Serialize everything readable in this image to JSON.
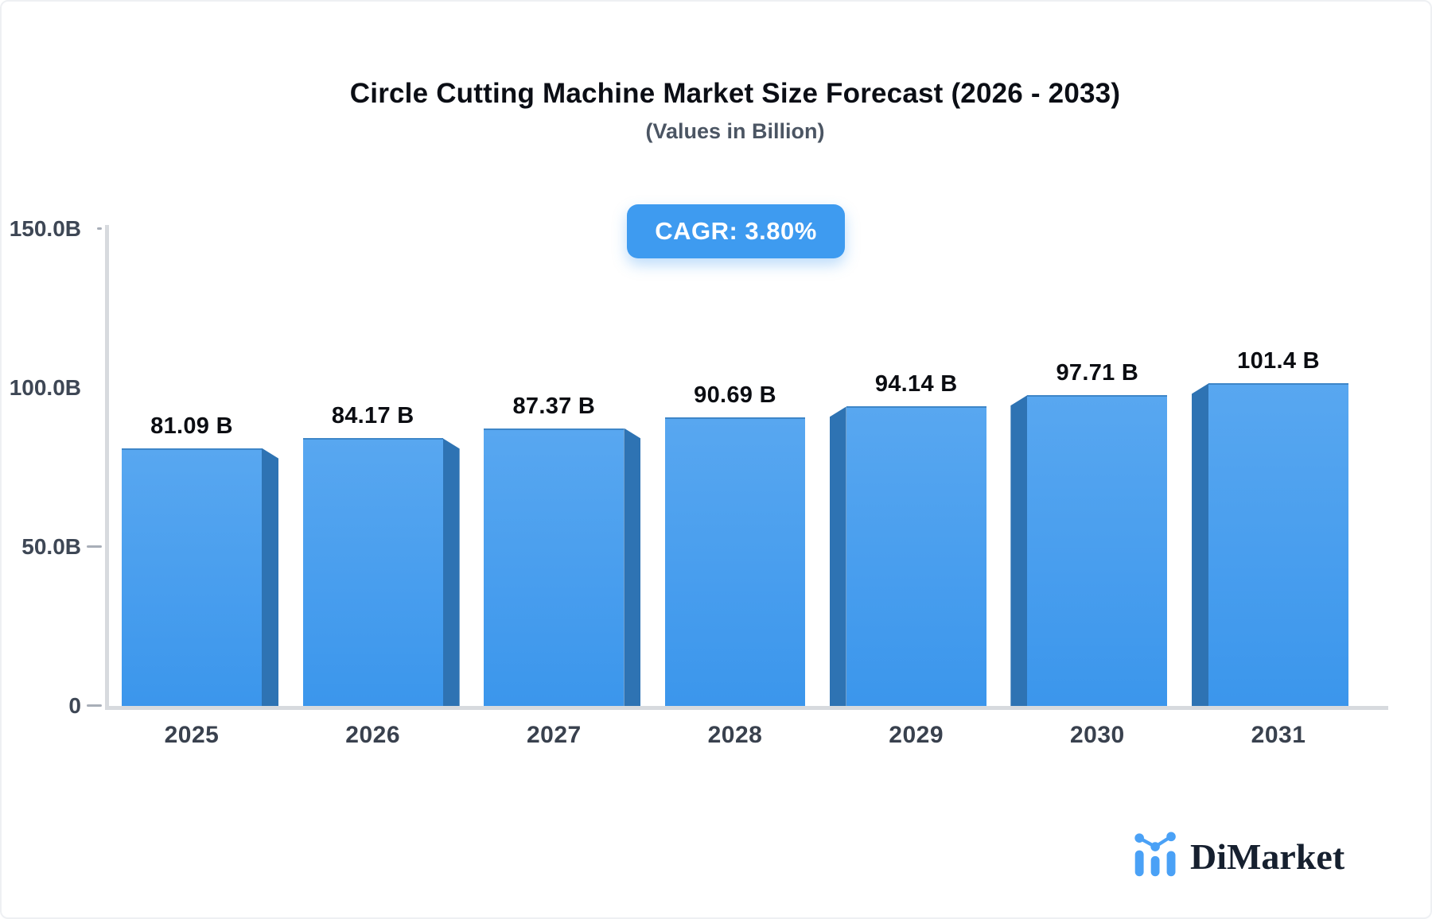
{
  "header": {
    "title": "Circle Cutting Machine Market Size Forecast (2026 - 2033)",
    "subtitle": "(Values in Billion)"
  },
  "badge": {
    "label": "CAGR: 3.80%",
    "bg_color": "#3e9bf0"
  },
  "chart_data": {
    "type": "bar",
    "title": "Circle Cutting Machine Market Size Forecast (2026 - 2033)",
    "subtitle": "(Values in Billion)",
    "xlabel": "",
    "ylabel": "",
    "categories": [
      "2025",
      "2026",
      "2027",
      "2028",
      "2029",
      "2030",
      "2031"
    ],
    "values": [
      81.09,
      84.17,
      87.37,
      90.69,
      94.14,
      97.71,
      101.4
    ],
    "value_labels": [
      "81.09 B",
      "84.17 B",
      "87.37 B",
      "90.69 B",
      "94.14 B",
      "97.71 B",
      "101.4 B"
    ],
    "unit": "Billion",
    "y_ticks": [
      "150.0B",
      "100.0B",
      "50.0B",
      "0"
    ],
    "y_tick_values": [
      150,
      100,
      50,
      0
    ],
    "ylim": [
      0,
      150
    ],
    "grid": false,
    "legend": "none",
    "bar_color_top": "#58a7f0",
    "bar_color_bottom": "#3b96ec",
    "bar_side_color": "#2e73b3",
    "axis_color": "#d7dade",
    "tick_color": "#a8aeb8"
  },
  "logo": {
    "text": "DiMarket",
    "icon": "bar-line-chart-icon",
    "text_color": "#16202f",
    "icon_color": "#4aa1f6"
  }
}
